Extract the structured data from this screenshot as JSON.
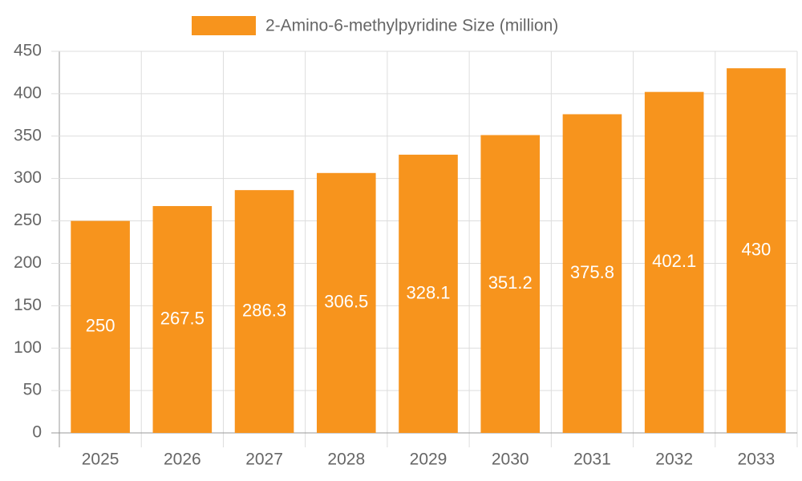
{
  "chart_data": {
    "type": "bar",
    "categories": [
      "2025",
      "2026",
      "2027",
      "2028",
      "2029",
      "2030",
      "2031",
      "2032",
      "2033"
    ],
    "series": [
      {
        "name": "2-Amino-6-methylpyridine Size (million)",
        "color": "#f7941d",
        "values": [
          250,
          267.5,
          286.3,
          306.5,
          328.1,
          351.2,
          375.8,
          402.1,
          430
        ]
      }
    ],
    "ylim": [
      0,
      450
    ],
    "yticks": [
      0,
      50,
      100,
      150,
      200,
      250,
      300,
      350,
      400,
      450
    ],
    "grid": true,
    "legend": "top"
  }
}
